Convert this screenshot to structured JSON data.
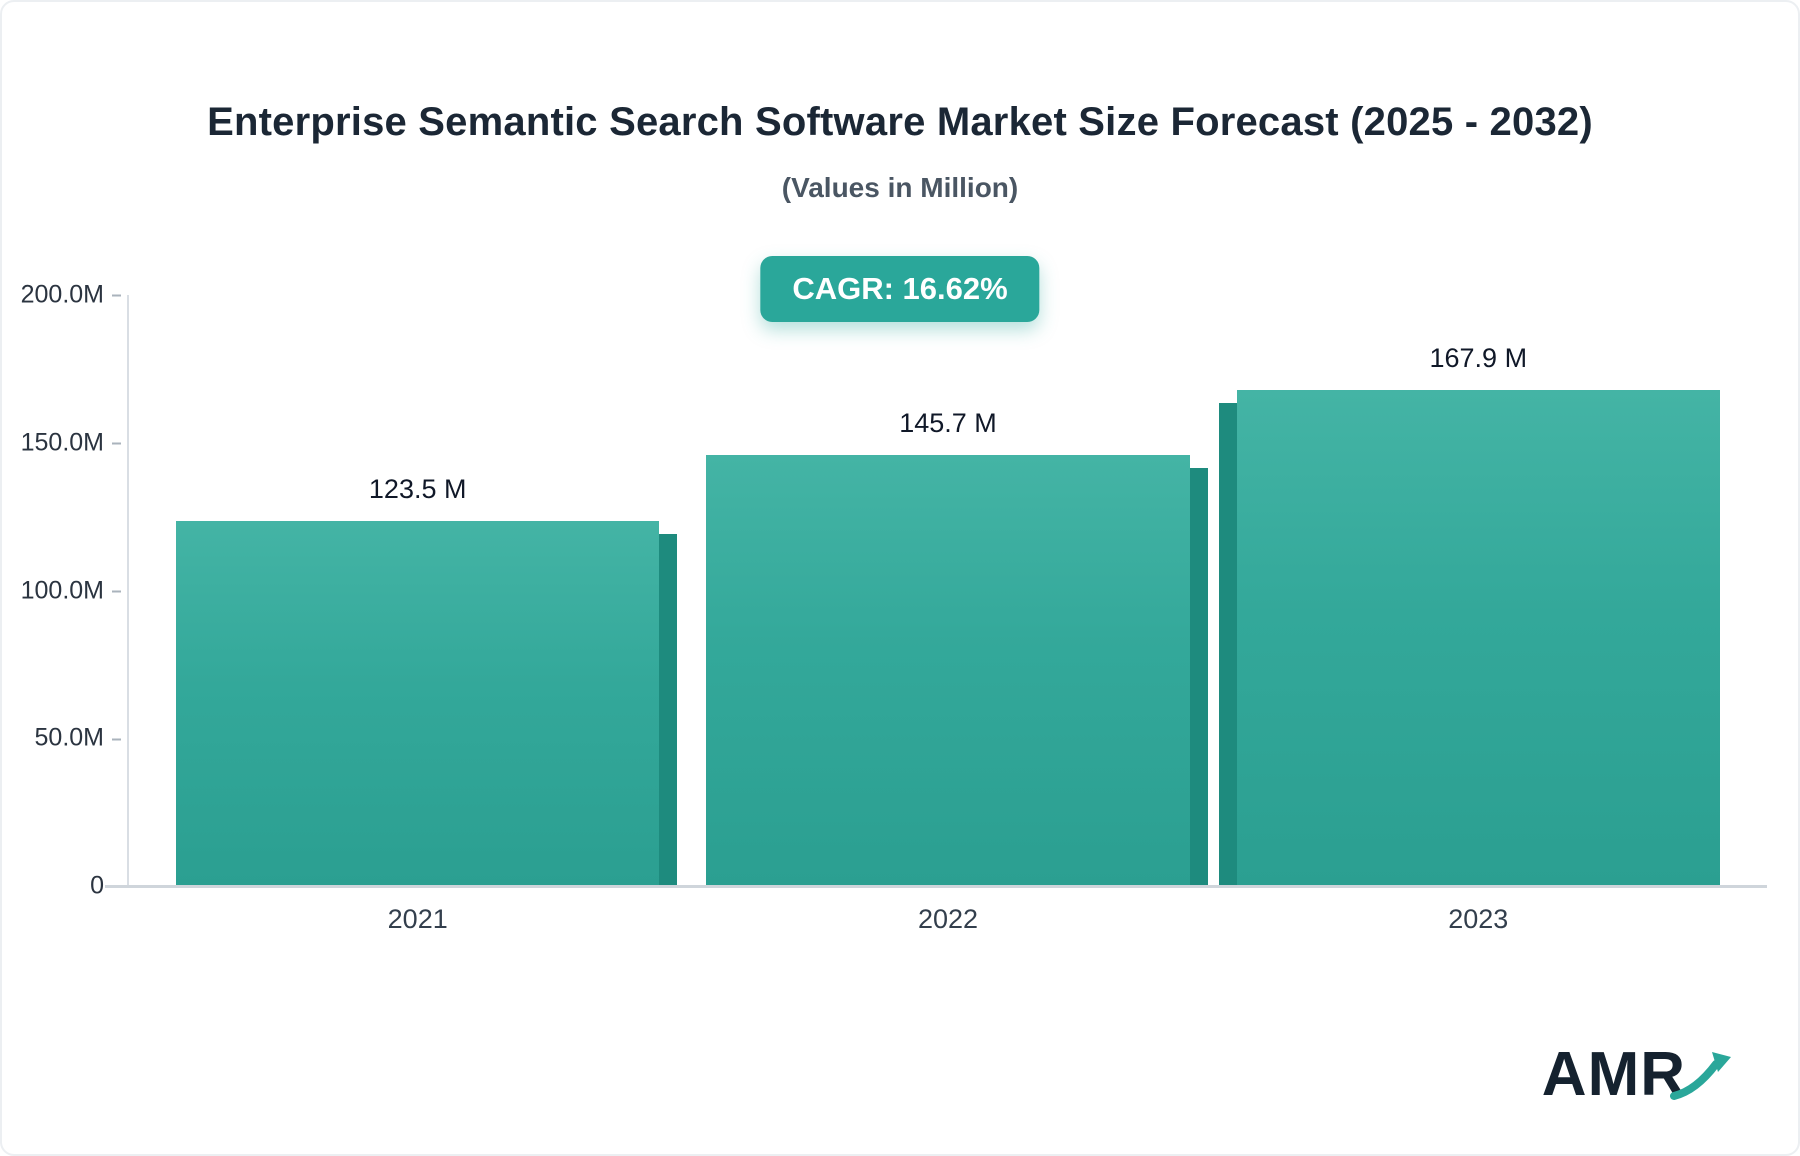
{
  "header": {
    "title": "Enterprise Semantic Search Software Market Size Forecast (2025 - 2032)",
    "subtitle": "(Values in Million)",
    "badge": "CAGR: 16.62%"
  },
  "logo": {
    "text": "AMR"
  },
  "colors": {
    "accent": "#2aa79a",
    "bar_top": "#44b4a5",
    "bar_bottom": "#2b9f91",
    "bar_side": "#1e8b7e",
    "title_text": "#1b2735",
    "badge_bg": "#2aa79a",
    "axis_line": "#cfd5db"
  },
  "chart_data": {
    "type": "bar",
    "title": "Enterprise Semantic Search Software Market Size Forecast (2025 - 2032)",
    "subtitle": "(Values in Million)",
    "categories": [
      "2021",
      "2022",
      "2023"
    ],
    "values": [
      123.5,
      145.7,
      167.9
    ],
    "value_labels": [
      "123.5 M",
      "145.7 M",
      "167.9 M"
    ],
    "unit": "Million",
    "annotation": "CAGR: 16.62%",
    "xlabel": "",
    "ylabel": "",
    "ylim": [
      0,
      200
    ],
    "yticks": [
      {
        "label": "200.0M",
        "value": 200
      },
      {
        "label": "150.0M",
        "value": 150
      },
      {
        "label": "100.0M",
        "value": 100
      },
      {
        "label": "50.0M",
        "value": 50
      },
      {
        "label": "0",
        "value": 0
      }
    ],
    "bar_sides": [
      "right",
      "right",
      "left"
    ],
    "grid": false,
    "legend_position": "none"
  }
}
